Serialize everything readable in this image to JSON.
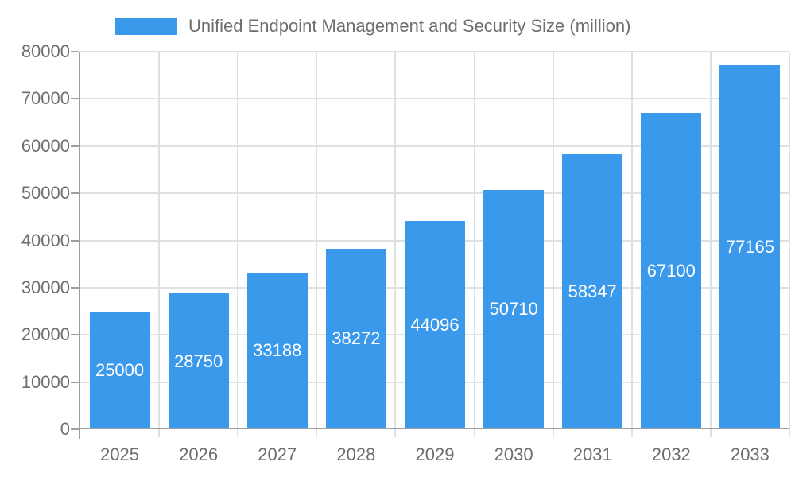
{
  "legend": {
    "label": "Unified Endpoint Management and Security Size (million)"
  },
  "colors": {
    "bar": "#3B99EC",
    "grid": "#E0E0E0",
    "axis": "#9E9E9E",
    "text": "#6E6E6E",
    "value_label": "#FFFFFF",
    "background": "#FFFFFF"
  },
  "chart_data": {
    "type": "bar",
    "title": "Unified Endpoint Management and Security Size (million)",
    "categories": [
      "2025",
      "2026",
      "2027",
      "2028",
      "2029",
      "2030",
      "2031",
      "2032",
      "2033"
    ],
    "values": [
      25000,
      28750,
      33188,
      38272,
      44096,
      50710,
      58347,
      67100,
      77165
    ],
    "xlabel": "",
    "ylabel": "",
    "ylim": [
      0,
      80000
    ],
    "ytick_step": 10000,
    "ytick_labels": [
      "0",
      "10000",
      "20000",
      "30000",
      "40000",
      "50000",
      "60000",
      "70000",
      "80000"
    ],
    "grid": true,
    "legend_position": "top",
    "value_label_position": "center",
    "bar_color": "#3B99EC"
  }
}
